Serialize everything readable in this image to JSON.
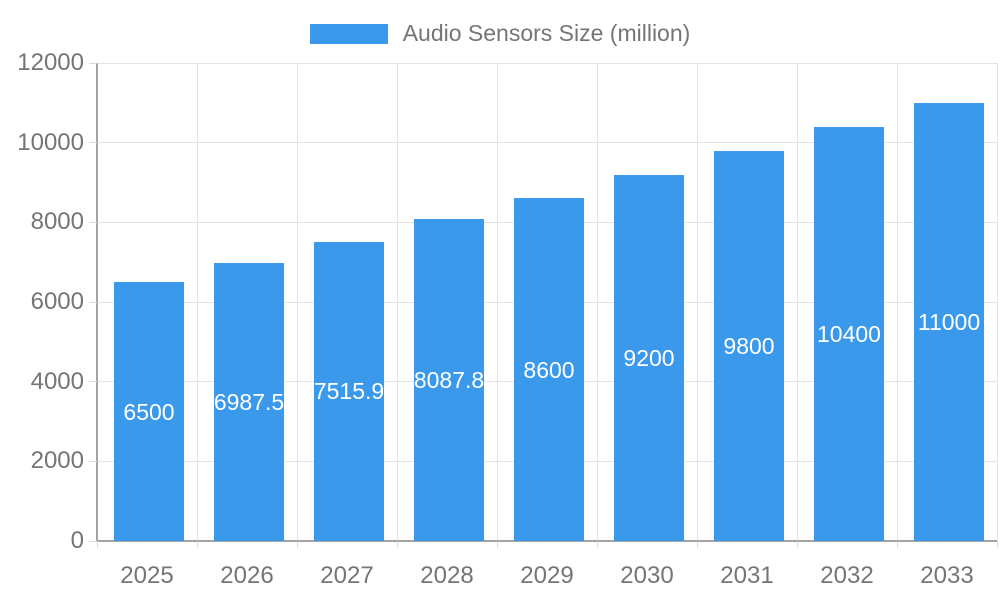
{
  "chart_data": {
    "type": "bar",
    "title": "",
    "legend": "Audio Sensors Size (million)",
    "legend_position": "top-center",
    "categories": [
      "2025",
      "2026",
      "2027",
      "2028",
      "2029",
      "2030",
      "2031",
      "2032",
      "2033"
    ],
    "series": [
      {
        "name": "Audio Sensors Size (million)",
        "values": [
          6500,
          6987.5,
          7515.9,
          8087.8,
          8600,
          9200,
          9800,
          10400,
          11000
        ]
      }
    ],
    "value_labels": [
      "6500",
      "6987.5",
      "7515.9",
      "8087.8",
      "8600",
      "9200",
      "9800",
      "10400",
      "11000"
    ],
    "xlabel": "",
    "ylabel": "",
    "y_ticks": [
      0,
      2000,
      4000,
      6000,
      8000,
      10000,
      12000
    ],
    "ylim": [
      0,
      12000
    ],
    "grid": true,
    "colors": {
      "bar": "#3B99EC",
      "value_label_text": "#FFFFFF",
      "axis_text": "#757575",
      "legend_text": "#757575",
      "gridline": "#E4E4E4",
      "axis_line": "#A3A3A3",
      "background": "#FFFFFF"
    }
  }
}
